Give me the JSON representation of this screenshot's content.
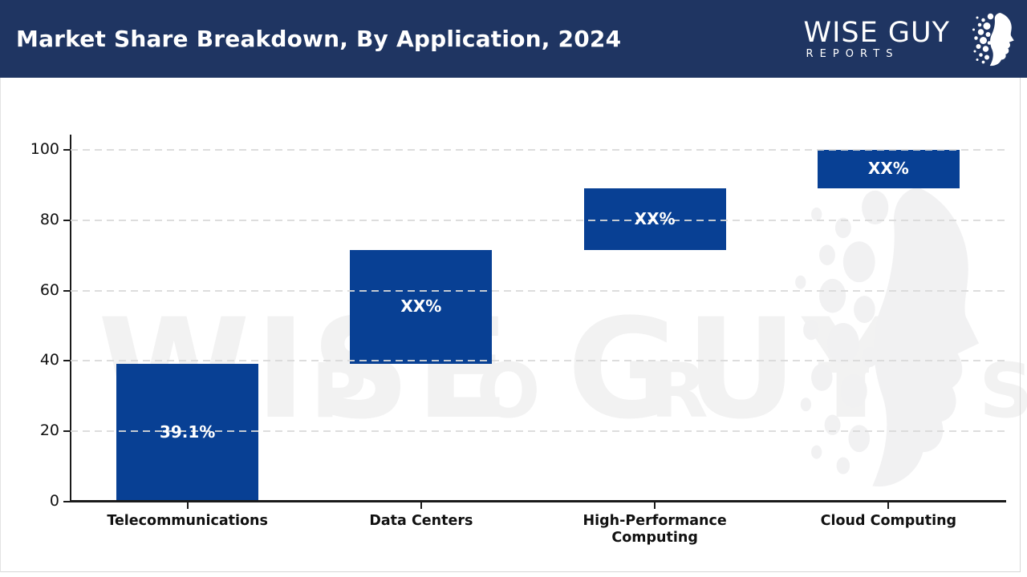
{
  "header": {
    "title": "Market Share Breakdown, By Application, 2024",
    "logo": {
      "line1": "WISE GUY",
      "line2": "REPORTS"
    }
  },
  "watermark": {
    "line1": "WISE GUY.",
    "line2": "P O R T S"
  },
  "colors": {
    "header_bg": "#1f3562",
    "bar": "#084094",
    "grid": "#d9d9d9",
    "axis": "#1a1a1a",
    "watermark": "#f2f2f2"
  },
  "chart_data": {
    "type": "bar",
    "subtype": "waterfall",
    "title": "Market Share Breakdown, By Application, 2024",
    "categories": [
      "Telecommunications",
      "Data Centers",
      "High-Performance Computing",
      "Cloud Computing"
    ],
    "categories_lines": [
      [
        "Telecommunications"
      ],
      [
        "Data Centers"
      ],
      [
        "High-Performance",
        "Computing"
      ],
      [
        "Cloud Computing"
      ]
    ],
    "segments": [
      {
        "category": "Telecommunications",
        "start": 0,
        "end": 39.1,
        "label": "39.1%"
      },
      {
        "category": "Data Centers",
        "start": 39.1,
        "end": 71.5,
        "label": "XX%"
      },
      {
        "category": "High-Performance Computing",
        "start": 71.5,
        "end": 89.0,
        "label": "XX%"
      },
      {
        "category": "Cloud Computing",
        "start": 89.0,
        "end": 100,
        "label": "XX%"
      }
    ],
    "yticks": [
      0,
      20,
      40,
      60,
      80,
      100
    ],
    "ylim": [
      0,
      104
    ],
    "xlabel": "",
    "ylabel": "",
    "grid": "horizontal-dashed",
    "legend": "none",
    "bar_color": "#084094",
    "value_label_color": "#ffffff"
  }
}
